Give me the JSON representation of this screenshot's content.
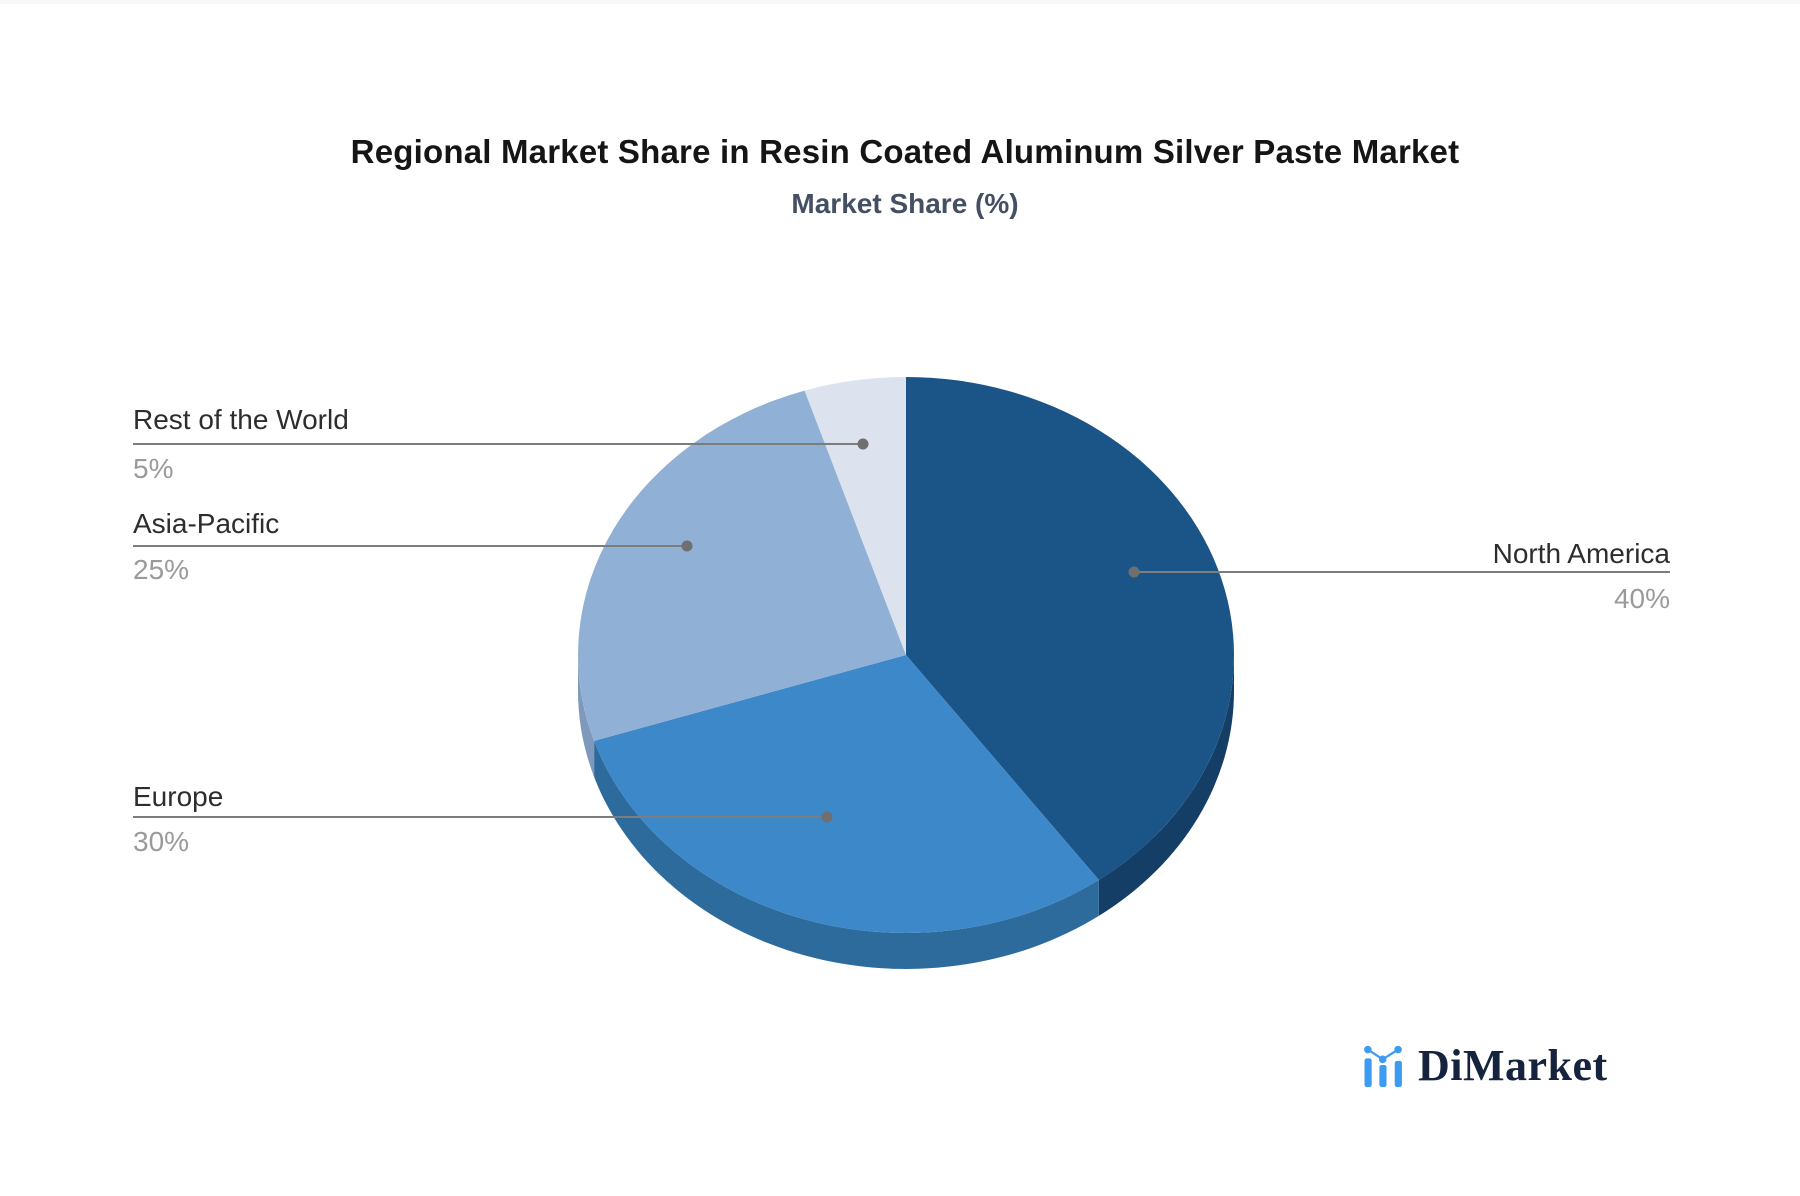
{
  "page": {
    "title": "Regional Market Share in Resin Coated Aluminum Silver Paste Market",
    "subtitle": "Market Share (%)"
  },
  "chart_data": {
    "type": "pie",
    "title": "Regional Market Share in Resin Coated Aluminum Silver Paste Market",
    "subtitle": "Market Share (%)",
    "unit": "%",
    "style": "3d-pie",
    "start_angle_deg": -90,
    "direction": "clockwise",
    "legend_position": "callout-labels",
    "slices": [
      {
        "label": "North America",
        "value": 40,
        "display": "40%",
        "color": "#1b5588",
        "side_color": "#143e66"
      },
      {
        "label": "Europe",
        "value": 30,
        "display": "30%",
        "color": "#3c88c9",
        "side_color": "#2e6b9d"
      },
      {
        "label": "Asia-Pacific",
        "value": 25,
        "display": "25%",
        "color": "#90b0d5",
        "side_color": "#7e99bb"
      },
      {
        "label": "Rest of the World",
        "value": 5,
        "display": "5%",
        "color": "#dce3ee",
        "side_color": "#c2cedd"
      }
    ],
    "callout_color": "#7d7d7d"
  },
  "branding": {
    "logo_text": "DiMarket",
    "logo_icon": "bar-line-chart-icon",
    "logo_icon_color": "#3e9bf4",
    "logo_text_color": "#15233e"
  }
}
